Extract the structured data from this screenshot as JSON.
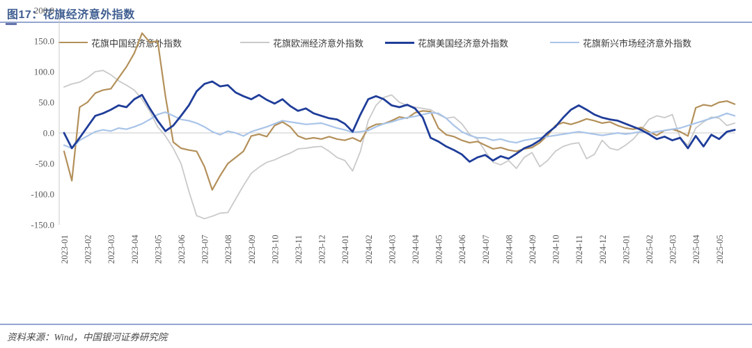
{
  "header": {
    "title": "图17：花旗经济意外指数"
  },
  "footer": {
    "source": "资料来源：Wind，中国银河证券研究院"
  },
  "colors": {
    "title_blue": "#3F5E91",
    "rule_blue": "#94A5CF",
    "axis_text": "#595959",
    "grid_gray": "#C8C8C8",
    "china": "#B3905A",
    "europe": "#C9C9C9",
    "us": "#1F3D99",
    "em": "#A9C4E8"
  },
  "chart_data": {
    "type": "line",
    "title": "花旗经济意外指数",
    "xlabel": "",
    "ylabel": "",
    "ylim": [
      -150,
      200
    ],
    "y_ticks": [
      200,
      150,
      100,
      50,
      0,
      -50,
      -100,
      -150
    ],
    "y_tick_labels": [
      "200.0",
      "150.0",
      "100.0",
      "50.0",
      "0.0",
      "-50.0",
      "-100.0",
      "-150.0"
    ],
    "grid": "zero-line-only",
    "legend_position": "top",
    "samples_per_month": 3,
    "x_tick_labels": [
      "2023-01",
      "2023-02",
      "2023-03",
      "2023-04",
      "2023-05",
      "2023-06",
      "2023-07",
      "2023-08",
      "2023-09",
      "2023-10",
      "2023-11",
      "2023-12",
      "2024-01",
      "2024-02",
      "2024-03",
      "2024-04",
      "2024-05",
      "2024-06",
      "2024-07",
      "2024-08",
      "2024-09",
      "2024-10",
      "2024-11",
      "2024-12",
      "2025-01",
      "2025-02",
      "2025-03",
      "2025-04",
      "2025-05"
    ],
    "series": [
      {
        "name": "花旗中国经济意外指数",
        "color": "#B3905A",
        "width": 2.2,
        "values": [
          -30,
          -78,
          42,
          50,
          65,
          70,
          72,
          90,
          108,
          130,
          163,
          148,
          150,
          60,
          -15,
          -25,
          -28,
          -30,
          -55,
          -93,
          -70,
          -50,
          -40,
          -30,
          -5,
          -2,
          -6,
          12,
          18,
          10,
          -5,
          -10,
          -8,
          -10,
          -6,
          -10,
          -12,
          -8,
          -14,
          8,
          14,
          15,
          20,
          26,
          24,
          33,
          36,
          35,
          8,
          -3,
          -6,
          -12,
          -16,
          -14,
          -20,
          -26,
          -24,
          -28,
          -30,
          -26,
          -24,
          -16,
          -4,
          12,
          17,
          14,
          18,
          23,
          20,
          16,
          18,
          12,
          8,
          6,
          9,
          2,
          -4,
          4,
          6,
          2,
          -5,
          41,
          46,
          44,
          50,
          52,
          47
        ]
      },
      {
        "name": "花旗欧洲经济意外指数",
        "color": "#C9C9C9",
        "width": 1.8,
        "values": [
          75,
          80,
          83,
          90,
          100,
          102,
          95,
          85,
          78,
          70,
          55,
          35,
          10,
          -5,
          -25,
          -50,
          -95,
          -135,
          -140,
          -136,
          -131,
          -130,
          -108,
          -86,
          -66,
          -56,
          -48,
          -44,
          -38,
          -33,
          -26,
          -25,
          -23,
          -22,
          -30,
          -40,
          -45,
          -62,
          -30,
          20,
          45,
          58,
          62,
          50,
          45,
          42,
          40,
          38,
          30,
          24,
          26,
          15,
          -2,
          -10,
          -30,
          -48,
          -52,
          -45,
          -58,
          -40,
          -32,
          -55,
          -45,
          -30,
          -22,
          -18,
          -16,
          -42,
          -35,
          -12,
          -25,
          -28,
          -20,
          -10,
          5,
          22,
          28,
          25,
          30,
          -8,
          -20,
          8,
          18,
          26,
          24,
          12,
          16
        ]
      },
      {
        "name": "花旗美国经济意外指数",
        "color": "#1F3D99",
        "width": 2.8,
        "values": [
          0,
          -25,
          -8,
          10,
          28,
          32,
          38,
          45,
          42,
          55,
          62,
          40,
          20,
          3,
          12,
          28,
          45,
          68,
          80,
          84,
          76,
          78,
          66,
          60,
          55,
          62,
          54,
          48,
          55,
          44,
          36,
          40,
          32,
          28,
          24,
          22,
          15,
          2,
          30,
          55,
          60,
          55,
          45,
          42,
          46,
          40,
          25,
          -8,
          -14,
          -22,
          -28,
          -35,
          -47,
          -40,
          -36,
          -45,
          -38,
          -42,
          -34,
          -25,
          -20,
          -12,
          0,
          10,
          25,
          38,
          45,
          38,
          30,
          25,
          22,
          20,
          15,
          10,
          5,
          -2,
          -10,
          -6,
          -12,
          -8,
          -25,
          -5,
          -22,
          -3,
          -10,
          2,
          5
        ]
      },
      {
        "name": "花旗新兴市场经济意外指数",
        "color": "#A9C4E8",
        "width": 2.2,
        "values": [
          -20,
          -25,
          -12,
          -5,
          2,
          5,
          3,
          8,
          6,
          10,
          15,
          22,
          30,
          34,
          28,
          22,
          20,
          16,
          10,
          2,
          -3,
          3,
          0,
          -5,
          2,
          6,
          10,
          15,
          20,
          18,
          16,
          14,
          15,
          16,
          12,
          8,
          5,
          1,
          2,
          4,
          10,
          15,
          18,
          22,
          25,
          27,
          30,
          33,
          32,
          24,
          12,
          2,
          -4,
          -8,
          -8,
          -12,
          -10,
          -14,
          -16,
          -12,
          -10,
          -8,
          -6,
          -4,
          -2,
          0,
          2,
          0,
          -2,
          -4,
          -2,
          0,
          -2,
          0,
          2,
          0,
          2,
          4,
          6,
          8,
          12,
          16,
          20,
          24,
          27,
          32,
          28
        ]
      }
    ],
    "legend_x_positions": [
      84,
      345,
      553,
      790
    ]
  }
}
